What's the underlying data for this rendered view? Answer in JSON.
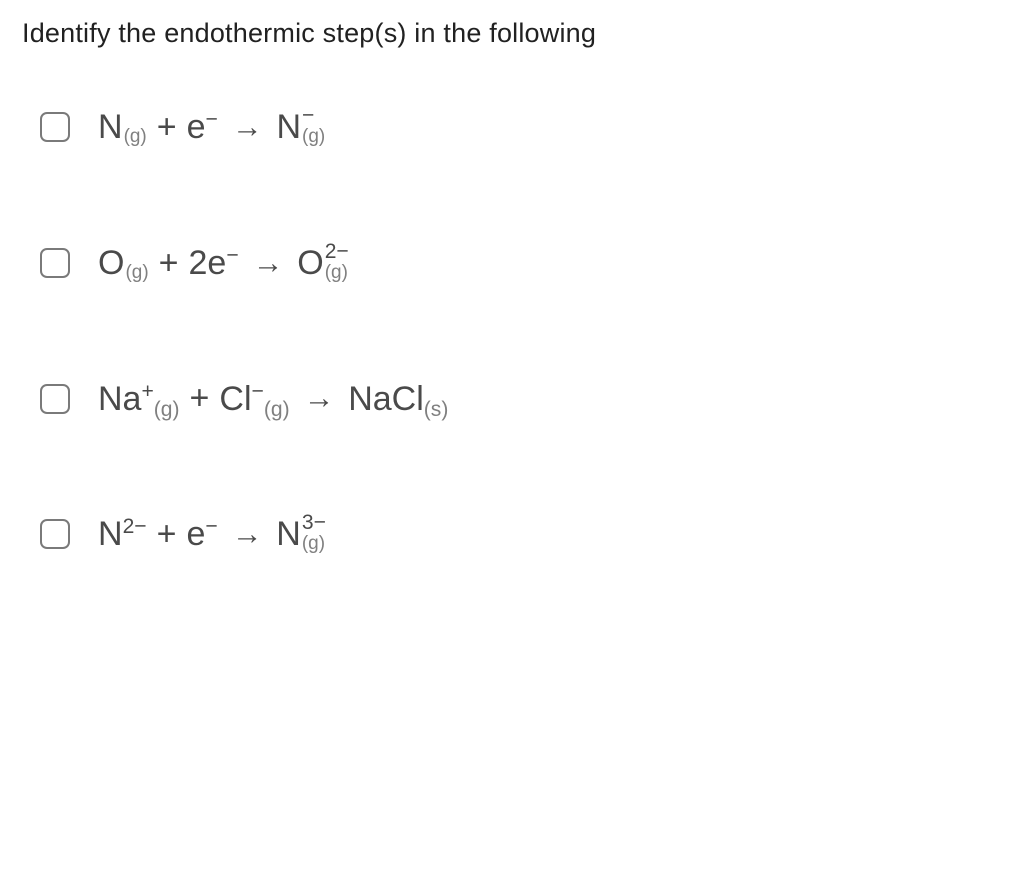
{
  "question_text": "Identify the endothermic step(s) in the following",
  "symbols": {
    "plus": "+",
    "arrow": "→",
    "e": "e",
    "minus": "−",
    "two_minus": "2−",
    "three_minus": "3−",
    "two": "2"
  },
  "options": [
    {
      "id": "opt1",
      "left": [
        {
          "base": "N",
          "sub": "(g)"
        }
      ],
      "add": {
        "base": "e",
        "sup": "−"
      },
      "right": [
        {
          "base": "N",
          "sup": "−",
          "sub": "(g)"
        }
      ]
    },
    {
      "id": "opt2",
      "left": [
        {
          "base": "O",
          "sub": "(g)"
        }
      ],
      "add": {
        "coef": "2",
        "base": "e",
        "sup": "−"
      },
      "right": [
        {
          "base": "O",
          "sup": "2−",
          "sub": "(g)"
        }
      ]
    },
    {
      "id": "opt3",
      "left": [
        {
          "base": "Na",
          "sup": "+",
          "sub_after": "(g)"
        }
      ],
      "add": {
        "base": "Cl",
        "sup": "−",
        "sub_after": "(g)"
      },
      "right": [
        {
          "base": "NaCl",
          "sub_after": "(s)"
        }
      ]
    },
    {
      "id": "opt4",
      "left": [
        {
          "base": "N",
          "sup_only": "2−"
        }
      ],
      "add": {
        "base": "e",
        "sup": "−"
      },
      "right": [
        {
          "base": "N",
          "sup": "3−",
          "sub": "(g)"
        }
      ]
    }
  ],
  "style": {
    "text_color": "#212121",
    "formula_color": "#4a4a4a",
    "sub_color": "#808080",
    "checkbox_border": "#7a7a7a",
    "background": "#ffffff",
    "question_fontsize": 27,
    "formula_fontsize": 34,
    "checkbox_size": 30,
    "checkbox_radius": 7
  }
}
